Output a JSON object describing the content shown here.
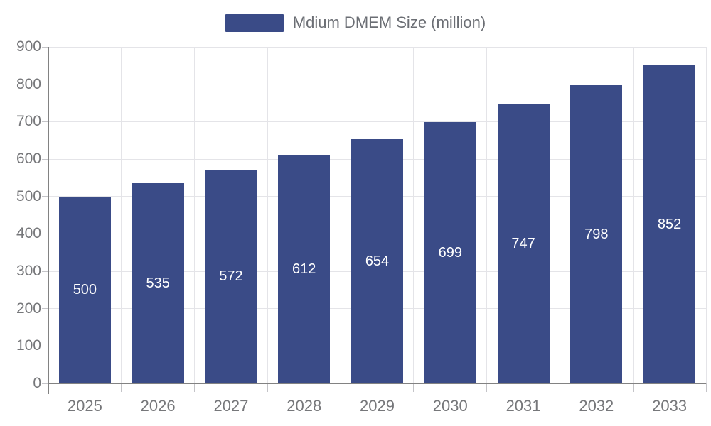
{
  "legend": {
    "label": "Mdium DMEM Size (million)"
  },
  "colors": {
    "bar": "#3A4B87",
    "grid": "#E4E4E8",
    "axis_line": "#828282",
    "tick": "#C4C4C8",
    "tick_label": "#76777A",
    "legend_text": "#6B6E74",
    "value_label": "#FFFFFF",
    "background": "#FFFFFF"
  },
  "chart_data": {
    "type": "bar",
    "title": "",
    "xlabel": "",
    "ylabel": "",
    "categories": [
      "2025",
      "2026",
      "2027",
      "2028",
      "2029",
      "2030",
      "2031",
      "2032",
      "2033"
    ],
    "series": [
      {
        "name": "Mdium DMEM Size (million)",
        "values": [
          500,
          535,
          572,
          612,
          654,
          699,
          747,
          798,
          852
        ]
      }
    ],
    "ylim": [
      0,
      900
    ],
    "ytick_step": 100,
    "grid": true,
    "legend_position": "top",
    "bar_labels": "inside-center"
  }
}
